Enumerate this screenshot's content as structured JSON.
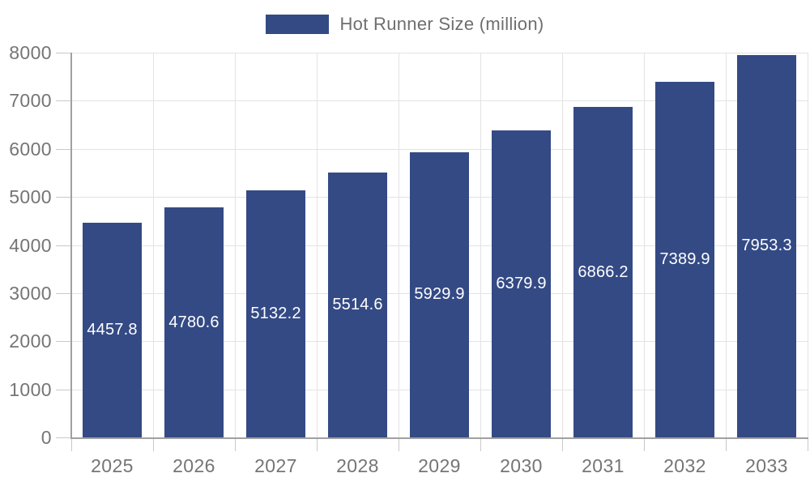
{
  "chart_data": {
    "type": "bar",
    "title": "",
    "series_name": "Hot Runner Size (million)",
    "categories": [
      "2025",
      "2026",
      "2027",
      "2028",
      "2029",
      "2030",
      "2031",
      "2032",
      "2033"
    ],
    "values": [
      4457.8,
      4780.6,
      5132.2,
      5514.6,
      5929.9,
      6379.9,
      6866.2,
      7389.9,
      7953.3
    ],
    "value_labels": [
      "4457.8",
      "4780.6",
      "5132.2",
      "5514.6",
      "5929.9",
      "6379.9",
      "6866.2",
      "7389.9",
      "7953.3"
    ],
    "xlabel": "",
    "ylabel": "",
    "ylim": [
      0,
      8000
    ],
    "yticks": [
      0,
      1000,
      2000,
      3000,
      4000,
      5000,
      6000,
      7000,
      8000
    ],
    "ytick_labels": [
      "0",
      "1000",
      "2000",
      "3000",
      "4000",
      "5000",
      "6000",
      "7000",
      "8000"
    ],
    "grid": true,
    "legend_position": "top-center",
    "value_label_position": "inside-center",
    "colors": {
      "bar": "#344a85",
      "value_label": "#ffffff",
      "axis_label": "#757575",
      "legend_label": "#6e6e6e",
      "gridline": "#e3e3e3",
      "tick": "#c9c9c9",
      "axis_line": "#a0a0a0",
      "background": "#ffffff"
    }
  }
}
